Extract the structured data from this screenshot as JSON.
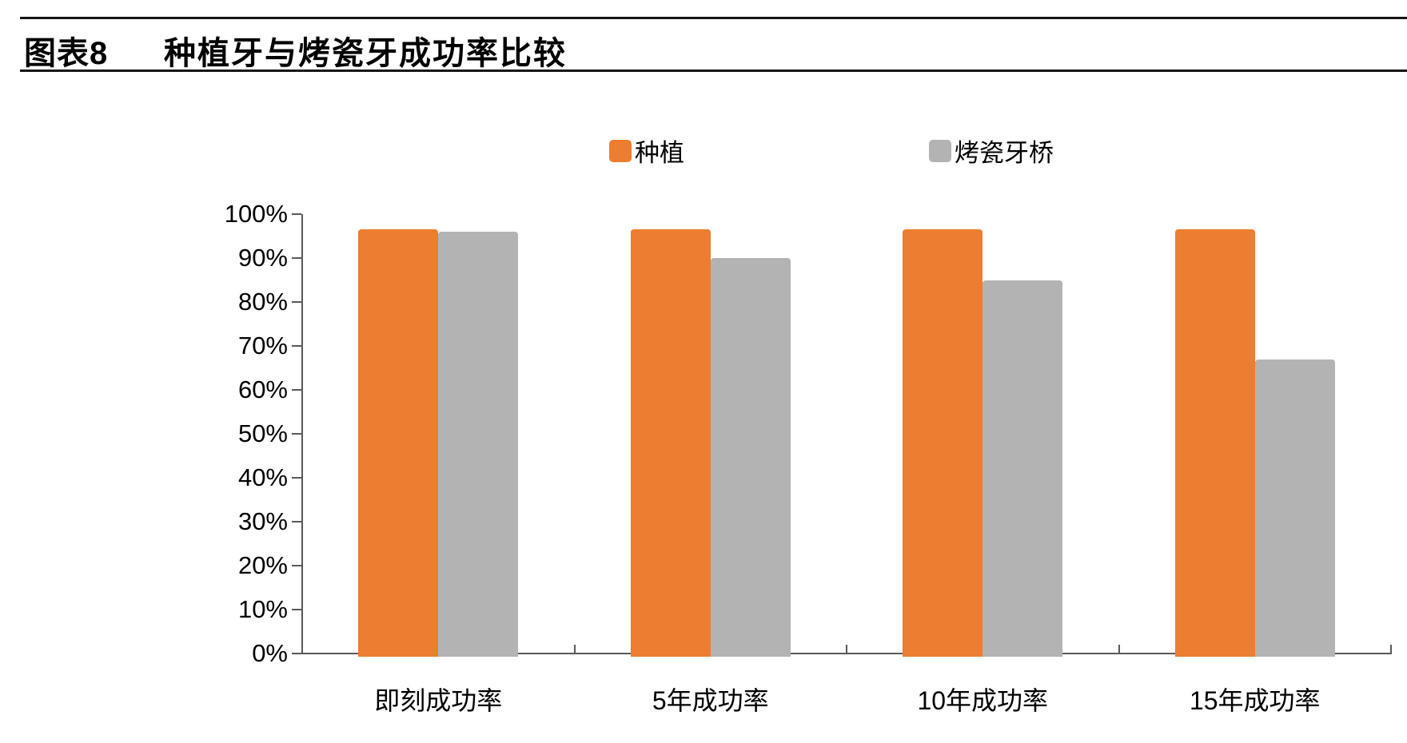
{
  "header": {
    "figure_label": "图表8",
    "title": "种植牙与烤瓷牙成功率比较"
  },
  "legend": {
    "items": [
      {
        "label": "种植",
        "color": "#ED7D31"
      },
      {
        "label": "烤瓷牙桥",
        "color": "#B3B3B3"
      }
    ]
  },
  "chart_data": {
    "type": "bar",
    "title": "种植牙与烤瓷牙成功率比较",
    "categories": [
      "即刻成功率",
      "5年成功率",
      "10年成功率",
      "15年成功率"
    ],
    "series": [
      {
        "name": "种植",
        "color": "#ED7D31",
        "values": [
          96.5,
          96.5,
          96.5,
          96.5
        ]
      },
      {
        "name": "烤瓷牙桥",
        "color": "#B3B3B3",
        "values": [
          96,
          90,
          85,
          67
        ]
      }
    ],
    "xlabel": "",
    "ylabel": "",
    "ylim": [
      0,
      100
    ],
    "ytick_step": 10,
    "ytick_labels": [
      "0%",
      "10%",
      "20%",
      "30%",
      "40%",
      "50%",
      "60%",
      "70%",
      "80%",
      "90%",
      "100%"
    ],
    "unit": "percent",
    "legend_position": "top",
    "grid": false,
    "axis_color": "#595959"
  }
}
